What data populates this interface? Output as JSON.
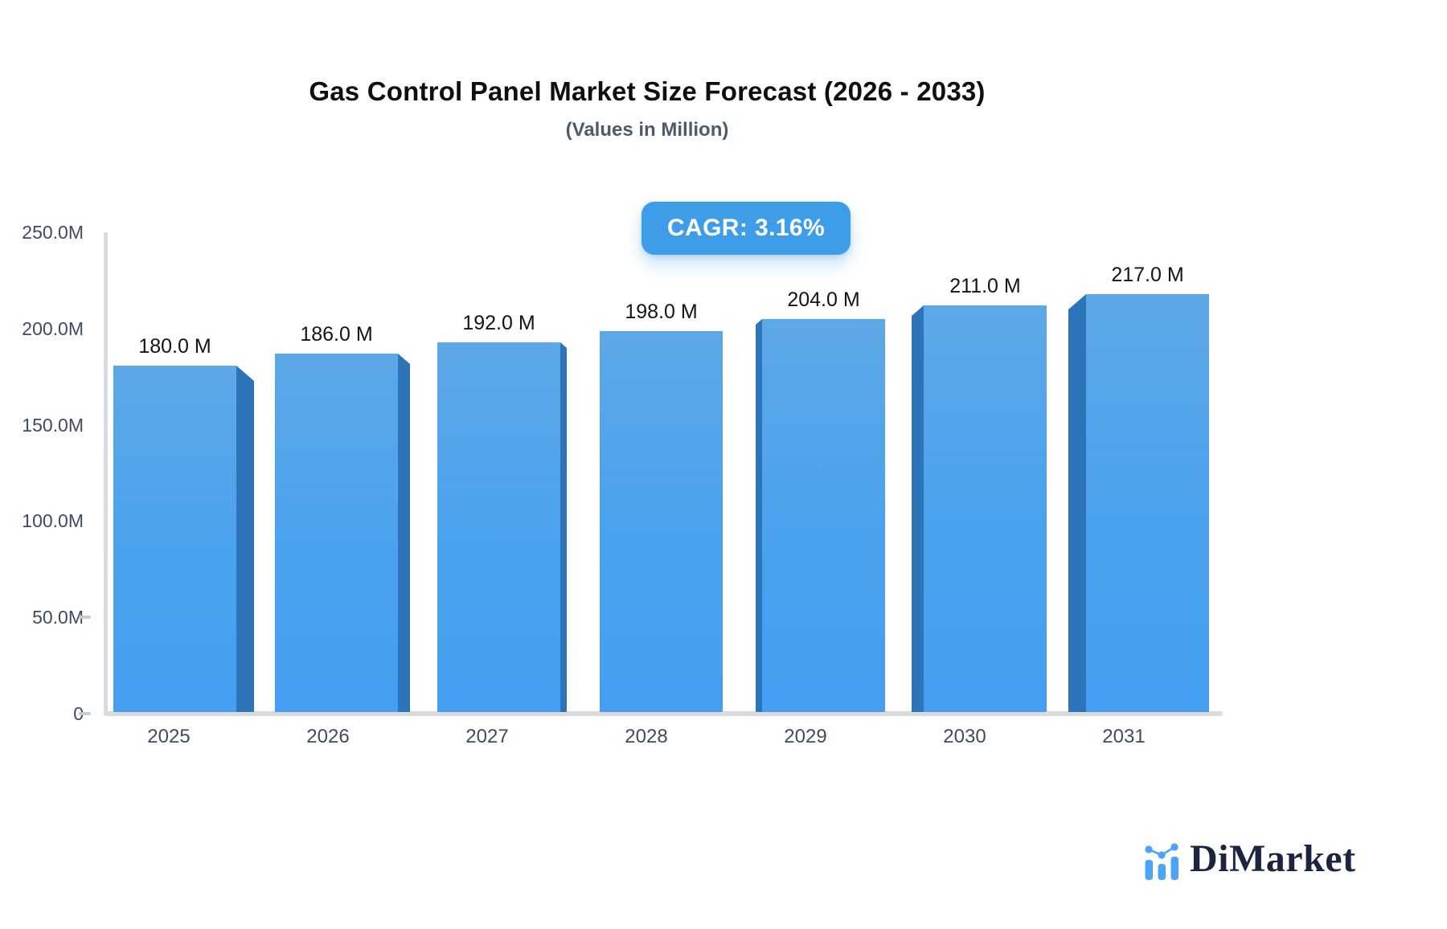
{
  "chart": {
    "title": "Gas Control Panel Market Size Forecast (2026 - 2033)",
    "subtitle": "(Values in Million)",
    "cagr_badge": "CAGR: 3.16%"
  },
  "chart_data": {
    "type": "bar",
    "title": "Gas Control Panel Market Size Forecast (2026 - 2033)",
    "subtitle": "(Values in Million)",
    "unit": "Million (M)",
    "cagr_percent": 3.16,
    "categories": [
      "2025",
      "2026",
      "2027",
      "2028",
      "2029",
      "2030",
      "2031"
    ],
    "values": [
      180.0,
      186.0,
      192.0,
      198.0,
      204.0,
      211.0,
      217.0
    ],
    "value_labels": [
      "180.0 M",
      "186.0 M",
      "192.0 M",
      "198.0 M",
      "204.0 M",
      "211.0 M",
      "217.0 M"
    ],
    "ylim": [
      0,
      250
    ],
    "y_tick_values": [
      250,
      200,
      150,
      100,
      50,
      0
    ],
    "y_tick_labels": [
      "250.0M",
      "200.0M",
      "150.0M",
      "100.0M",
      "50.0M",
      "0"
    ],
    "grid": "off",
    "legend": "none",
    "colors": {
      "bar_face_top": "#5da8e6",
      "bar_face_bottom": "#459ef2",
      "bar_side": "#2e74b8",
      "badge_background": "#3d9de9",
      "axis_line": "#d8dade",
      "axis_text": "#3e4b60",
      "value_text": "#141414"
    }
  },
  "logo": {
    "name": "DiMarket",
    "icon": "bar-chart-logo-icon",
    "icon_color": "#4da3f7",
    "text_color": "#1c2540"
  }
}
